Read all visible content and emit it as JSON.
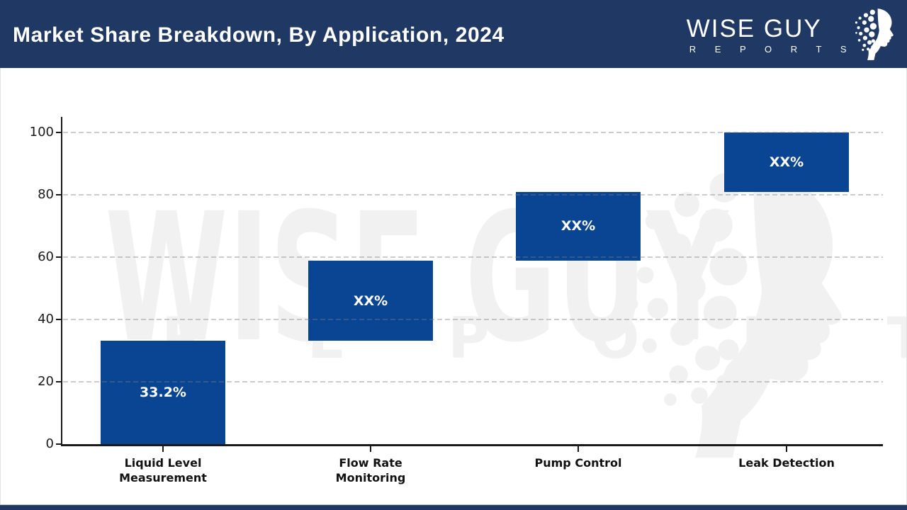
{
  "header": {
    "title": "Market Share Breakdown, By Application, 2024",
    "logo": {
      "brand_line1": "WISE GUY",
      "brand_line2": "R E P O R T S"
    }
  },
  "watermark": {
    "line1": "WISE GUY",
    "line2": "R E P O R T S"
  },
  "colors": {
    "header_bg": "#1f3864",
    "footer_bg": "#1f3864",
    "title_text": "#ffffff",
    "bar_fill": "#0a4594",
    "bar_label_text": "#ffffff",
    "axis": "#1a1a1a",
    "watermark": "#f1f1f1"
  },
  "chart_data": {
    "type": "bar",
    "variant": "waterfall",
    "title": "Market Share Breakdown, By Application, 2024",
    "categories": [
      "Liquid Level\nMeasurement",
      "Flow Rate\nMonitoring",
      "Pump Control",
      "Leak Detection"
    ],
    "segments": [
      {
        "category": "Liquid Level Measurement",
        "start": 0,
        "end": 33.2,
        "label": "33.2%"
      },
      {
        "category": "Flow Rate Monitoring",
        "start": 33.2,
        "end": 58.8,
        "label": "XX%"
      },
      {
        "category": "Pump Control",
        "start": 58.8,
        "end": 81.0,
        "label": "XX%"
      },
      {
        "category": "Leak Detection",
        "start": 81.0,
        "end": 100.0,
        "label": "XX%"
      }
    ],
    "ylim": [
      0,
      105
    ],
    "yticks": [
      0,
      20,
      40,
      60,
      80,
      100
    ],
    "xlabel": "",
    "ylabel": "",
    "grid": "horizontal-dashed",
    "legend": "none"
  }
}
